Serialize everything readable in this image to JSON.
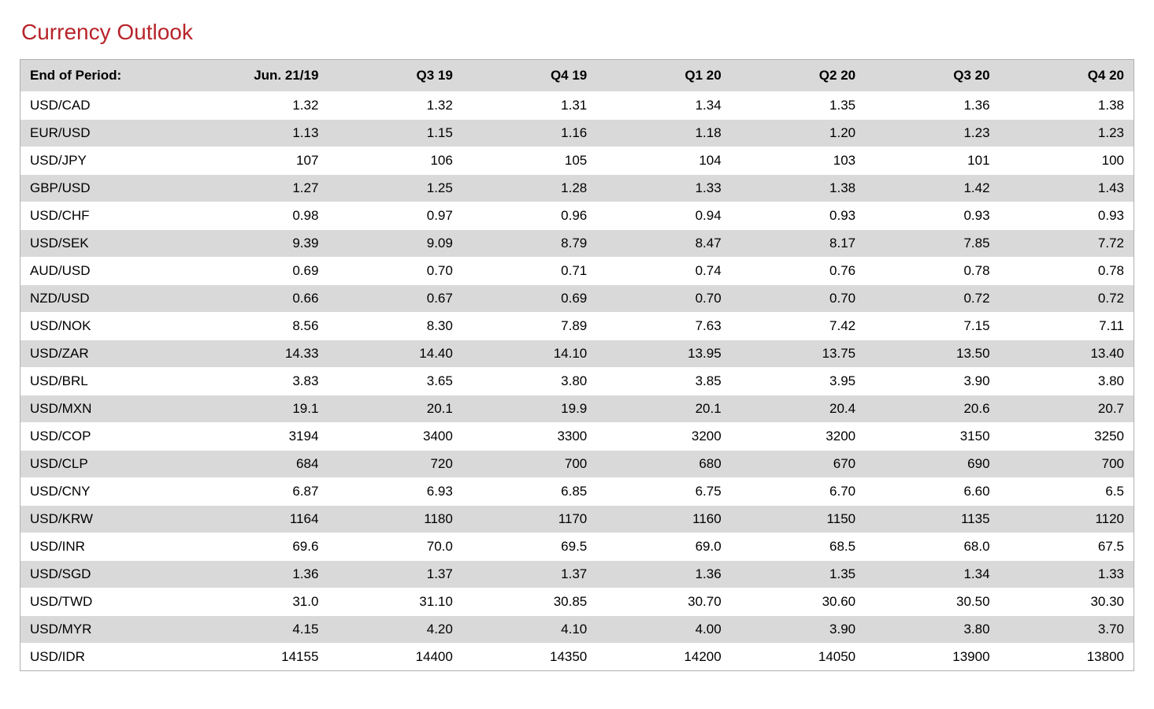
{
  "title": "Currency Outlook",
  "colors": {
    "title_color": "#b8242a",
    "header_bg": "#d9d9d9",
    "stripe_bg": "#d9d9d9",
    "row_bg": "#ffffff",
    "border_color": "#b0b0b0",
    "text_color": "#000000"
  },
  "typography": {
    "title_fontsize": 28,
    "header_fontsize": 17,
    "cell_fontsize": 17
  },
  "table": {
    "type": "table",
    "columns": [
      "End of Period:",
      "Jun. 21/19",
      "Q3 19",
      "Q4 19",
      "Q1 20",
      "Q2 20",
      "Q3 20",
      "Q4 20"
    ],
    "column_align": [
      "left",
      "right",
      "right",
      "right",
      "right",
      "right",
      "right",
      "right"
    ],
    "first_col_width": 220,
    "rows": [
      [
        "USD/CAD",
        "1.32",
        "1.32",
        "1.31",
        "1.34",
        "1.35",
        "1.36",
        "1.38"
      ],
      [
        "EUR/USD",
        "1.13",
        "1.15",
        "1.16",
        "1.18",
        "1.20",
        "1.23",
        "1.23"
      ],
      [
        "USD/JPY",
        "107",
        "106",
        "105",
        "104",
        "103",
        "101",
        "100"
      ],
      [
        "GBP/USD",
        "1.27",
        "1.25",
        "1.28",
        "1.33",
        "1.38",
        "1.42",
        "1.43"
      ],
      [
        "USD/CHF",
        "0.98",
        "0.97",
        "0.96",
        "0.94",
        "0.93",
        "0.93",
        "0.93"
      ],
      [
        "USD/SEK",
        "9.39",
        "9.09",
        "8.79",
        "8.47",
        "8.17",
        "7.85",
        "7.72"
      ],
      [
        "AUD/USD",
        "0.69",
        "0.70",
        "0.71",
        "0.74",
        "0.76",
        "0.78",
        "0.78"
      ],
      [
        "NZD/USD",
        "0.66",
        "0.67",
        "0.69",
        "0.70",
        "0.70",
        "0.72",
        "0.72"
      ],
      [
        "USD/NOK",
        "8.56",
        "8.30",
        "7.89",
        "7.63",
        "7.42",
        "7.15",
        "7.11"
      ],
      [
        "USD/ZAR",
        "14.33",
        "14.40",
        "14.10",
        "13.95",
        "13.75",
        "13.50",
        "13.40"
      ],
      [
        "USD/BRL",
        "3.83",
        "3.65",
        "3.80",
        "3.85",
        "3.95",
        "3.90",
        "3.80"
      ],
      [
        "USD/MXN",
        "19.1",
        "20.1",
        "19.9",
        "20.1",
        "20.4",
        "20.6",
        "20.7"
      ],
      [
        "USD/COP",
        "3194",
        "3400",
        "3300",
        "3200",
        "3200",
        "3150",
        "3250"
      ],
      [
        "USD/CLP",
        "684",
        "720",
        "700",
        "680",
        "670",
        "690",
        "700"
      ],
      [
        "USD/CNY",
        "6.87",
        "6.93",
        "6.85",
        "6.75",
        "6.70",
        "6.60",
        "6.5"
      ],
      [
        "USD/KRW",
        "1164",
        "1180",
        "1170",
        "1160",
        "1150",
        "1135",
        "1120"
      ],
      [
        "USD/INR",
        "69.6",
        "70.0",
        "69.5",
        "69.0",
        "68.5",
        "68.0",
        "67.5"
      ],
      [
        "USD/SGD",
        "1.36",
        "1.37",
        "1.37",
        "1.36",
        "1.35",
        "1.34",
        "1.33"
      ],
      [
        "USD/TWD",
        "31.0",
        "31.10",
        "30.85",
        "30.70",
        "30.60",
        "30.50",
        "30.30"
      ],
      [
        "USD/MYR",
        "4.15",
        "4.20",
        "4.10",
        "4.00",
        "3.90",
        "3.80",
        "3.70"
      ],
      [
        "USD/IDR",
        "14155",
        "14400",
        "14350",
        "14200",
        "14050",
        "13900",
        "13800"
      ]
    ]
  }
}
